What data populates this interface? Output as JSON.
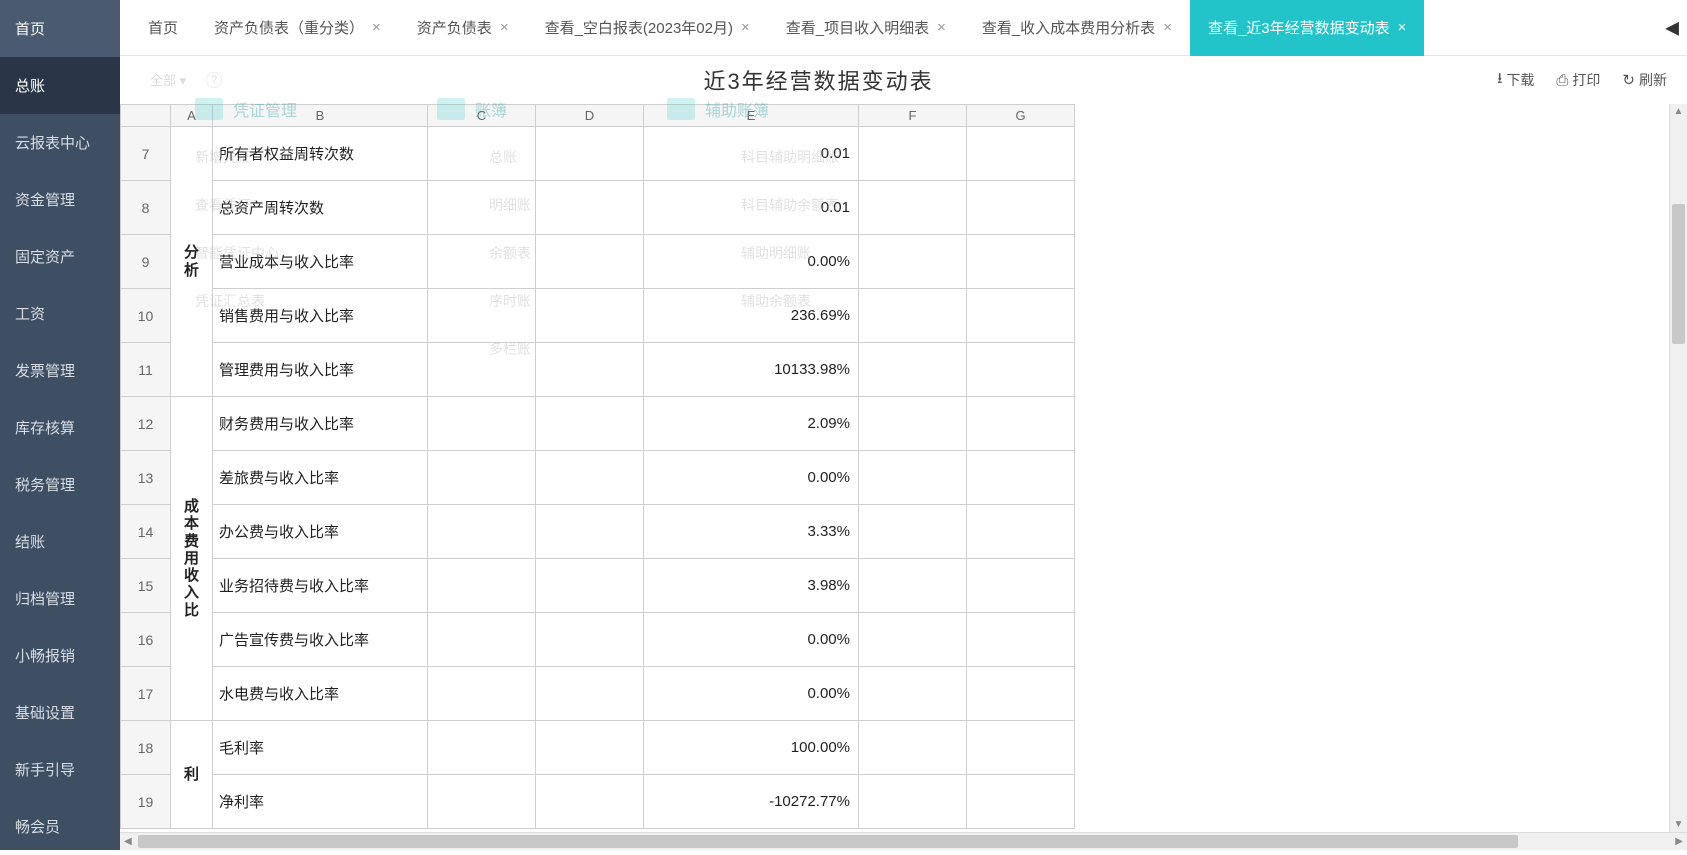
{
  "sidebar": {
    "items": [
      {
        "label": "首页",
        "cls": "active-home"
      },
      {
        "label": "总账",
        "cls": "active-ledger"
      },
      {
        "label": "云报表中心",
        "cls": ""
      },
      {
        "label": "资金管理",
        "cls": ""
      },
      {
        "label": "固定资产",
        "cls": ""
      },
      {
        "label": "工资",
        "cls": ""
      },
      {
        "label": "发票管理",
        "cls": ""
      },
      {
        "label": "库存核算",
        "cls": ""
      },
      {
        "label": "税务管理",
        "cls": ""
      },
      {
        "label": "结账",
        "cls": ""
      },
      {
        "label": "归档管理",
        "cls": ""
      },
      {
        "label": "小畅报销",
        "cls": ""
      },
      {
        "label": "基础设置",
        "cls": ""
      },
      {
        "label": "新手引导",
        "cls": ""
      },
      {
        "label": "畅会员",
        "cls": ""
      }
    ]
  },
  "tabs": [
    {
      "label": "首页",
      "closable": false,
      "active": false
    },
    {
      "label": "资产负债表（重分类）",
      "closable": true,
      "active": false
    },
    {
      "label": "资产负债表",
      "closable": true,
      "active": false
    },
    {
      "label": "查看_空白报表(2023年02月)",
      "closable": true,
      "active": false
    },
    {
      "label": "查看_项目收入明细表",
      "closable": true,
      "active": false
    },
    {
      "label": "查看_收入成本费用分析表",
      "closable": true,
      "active": false
    },
    {
      "label": "查看_近3年经营数据变动表",
      "closable": true,
      "active": true
    }
  ],
  "tab_scroll_icon": "◀",
  "ghost": {
    "filter": "全部",
    "help_icon": "?",
    "groups": [
      "凭证管理",
      "账簿",
      "辅助账簿"
    ],
    "col1": [
      "新增凭证",
      "查看凭证",
      "智能凭证中心",
      "凭证汇总表"
    ],
    "col2": [
      "总账",
      "明细账",
      "余额表",
      "序时账",
      "多栏账"
    ],
    "col3": [
      "科目辅助明细账",
      "科目辅助余额表",
      "辅助明细账",
      "辅助余额表"
    ]
  },
  "title": "近3年经营数据变动表",
  "actions": {
    "download": "下载",
    "print": "打印",
    "refresh": "刷新"
  },
  "columns": [
    "A",
    "B",
    "C",
    "D",
    "E",
    "F",
    "G"
  ],
  "rows": [
    {
      "n": "7",
      "a": "分\n析",
      "a_span": 5,
      "b": "所有者权益周转次数",
      "e": "0.01"
    },
    {
      "n": "8",
      "b": "总资产周转次数",
      "e": "0.01"
    },
    {
      "n": "9",
      "b": "营业成本与收入比率",
      "e": "0.00%"
    },
    {
      "n": "10",
      "b": "销售费用与收入比率",
      "e": "236.69%"
    },
    {
      "n": "11",
      "b": "管理费用与收入比率",
      "e": "10133.98%"
    },
    {
      "n": "12",
      "a": "成\n本\n费\n用\n收\n入\n比",
      "a_span": 6,
      "b": "财务费用与收入比率",
      "e": "2.09%"
    },
    {
      "n": "13",
      "b": "差旅费与收入比率",
      "e": "0.00%"
    },
    {
      "n": "14",
      "b": "办公费与收入比率",
      "e": "3.33%"
    },
    {
      "n": "15",
      "b": "业务招待费与收入比率",
      "e": "3.98%"
    },
    {
      "n": "16",
      "b": "广告宣传费与收入比率",
      "e": "0.00%"
    },
    {
      "n": "17",
      "b": "水电费与收入比率",
      "e": "0.00%"
    },
    {
      "n": "18",
      "a": "利",
      "a_span": 2,
      "b": "毛利率",
      "e": "100.00%"
    },
    {
      "n": "19",
      "b": "净利率",
      "e": "-10272.77%"
    }
  ]
}
